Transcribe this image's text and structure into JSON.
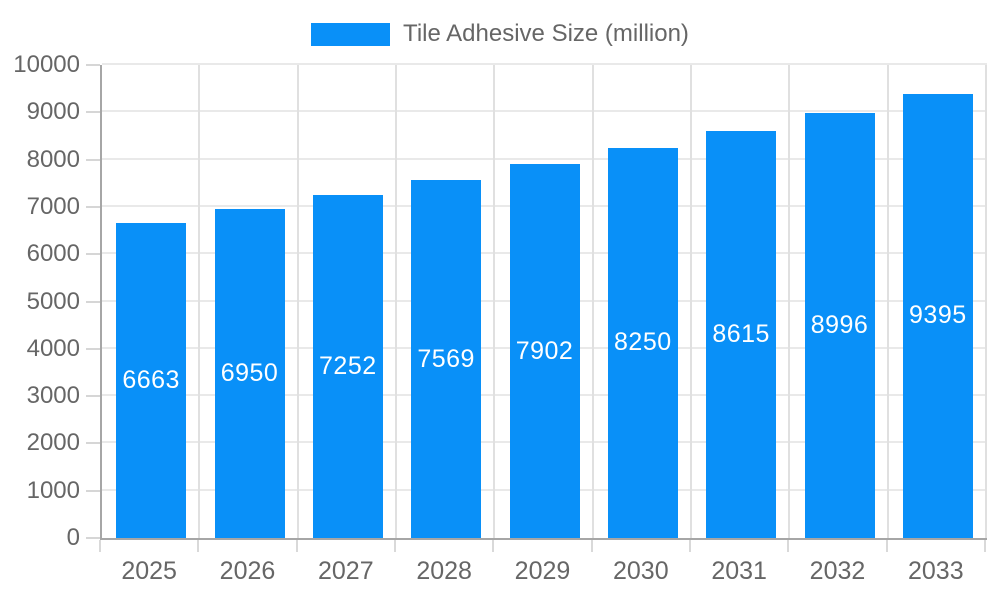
{
  "legend": {
    "label": "Tile Adhesive Size (million)"
  },
  "chart_data": {
    "type": "bar",
    "title": "Tile Adhesive Size (million)",
    "series_name": "Tile Adhesive Size (million)",
    "categories": [
      "2025",
      "2026",
      "2027",
      "2028",
      "2029",
      "2030",
      "2031",
      "2032",
      "2033"
    ],
    "values": [
      6663,
      6950,
      7252,
      7569,
      7902,
      8250,
      8615,
      8996,
      9395
    ],
    "xlabel": "",
    "ylabel": "",
    "ylim": [
      0,
      10000
    ],
    "ytick_step": 1000,
    "yticks": [
      0,
      1000,
      2000,
      3000,
      4000,
      5000,
      6000,
      7000,
      8000,
      9000,
      10000
    ],
    "grid": true,
    "legend_position": "top",
    "value_labels": "inside-center"
  },
  "colors": {
    "bar": "#0990F8",
    "bar_value_label": "#ffffff",
    "axis_text": "#666666",
    "axis_line": "#a6a6a6",
    "gridline": "#e9e9e9",
    "background": "#ffffff"
  }
}
